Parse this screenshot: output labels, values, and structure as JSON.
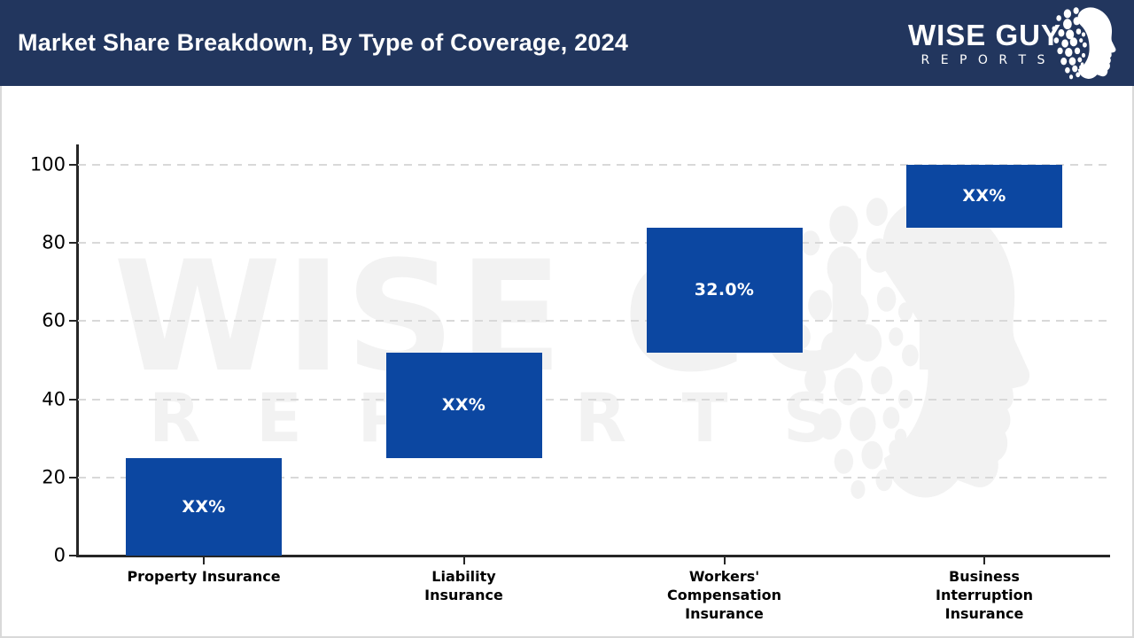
{
  "header": {
    "title": "Market Share Breakdown, By Type of Coverage, 2024",
    "logo": {
      "name": "WISE GUY",
      "tagline": "R E P O R T S"
    }
  },
  "watermark": {
    "line1": "WISE GUY",
    "line2": "R E P O R T S"
  },
  "chart_data": {
    "type": "bar",
    "variant": "floating-waterfall",
    "title": "Market Share Breakdown, By Type of Coverage, 2024",
    "categories": [
      "Property Insurance",
      "Liability Insurance",
      "Workers' Compensation Insurance",
      "Business Interruption Insurance"
    ],
    "category_label_lines": [
      [
        "Property Insurance"
      ],
      [
        "Liability",
        "Insurance"
      ],
      [
        "Workers'",
        "Compensation",
        "Insurance"
      ],
      [
        "Business",
        "Interruption",
        "Insurance"
      ]
    ],
    "bars": [
      {
        "category": "Property Insurance",
        "start": 0,
        "end": 25,
        "label": "XX%"
      },
      {
        "category": "Liability Insurance",
        "start": 25,
        "end": 52,
        "label": "XX%"
      },
      {
        "category": "Workers' Compensation Insurance",
        "start": 52,
        "end": 84,
        "label": "32.0%"
      },
      {
        "category": "Business Interruption Insurance",
        "start": 84,
        "end": 100,
        "label": "XX%"
      }
    ],
    "ylim": [
      0,
      100
    ],
    "yticks": [
      0,
      20,
      40,
      60,
      80,
      100
    ],
    "xlabel": "",
    "ylabel": "",
    "grid": "horizontal-dashed",
    "legend": "none",
    "bar_color": "#0c47a1",
    "value_label_color": "#ffffff"
  },
  "colors": {
    "header_bg": "#22365e",
    "bar": "#0c47a1",
    "grid": "#d9d9d9",
    "axis": "#262626",
    "watermark": "#f2f2f2",
    "border": "#d9d9d9"
  }
}
